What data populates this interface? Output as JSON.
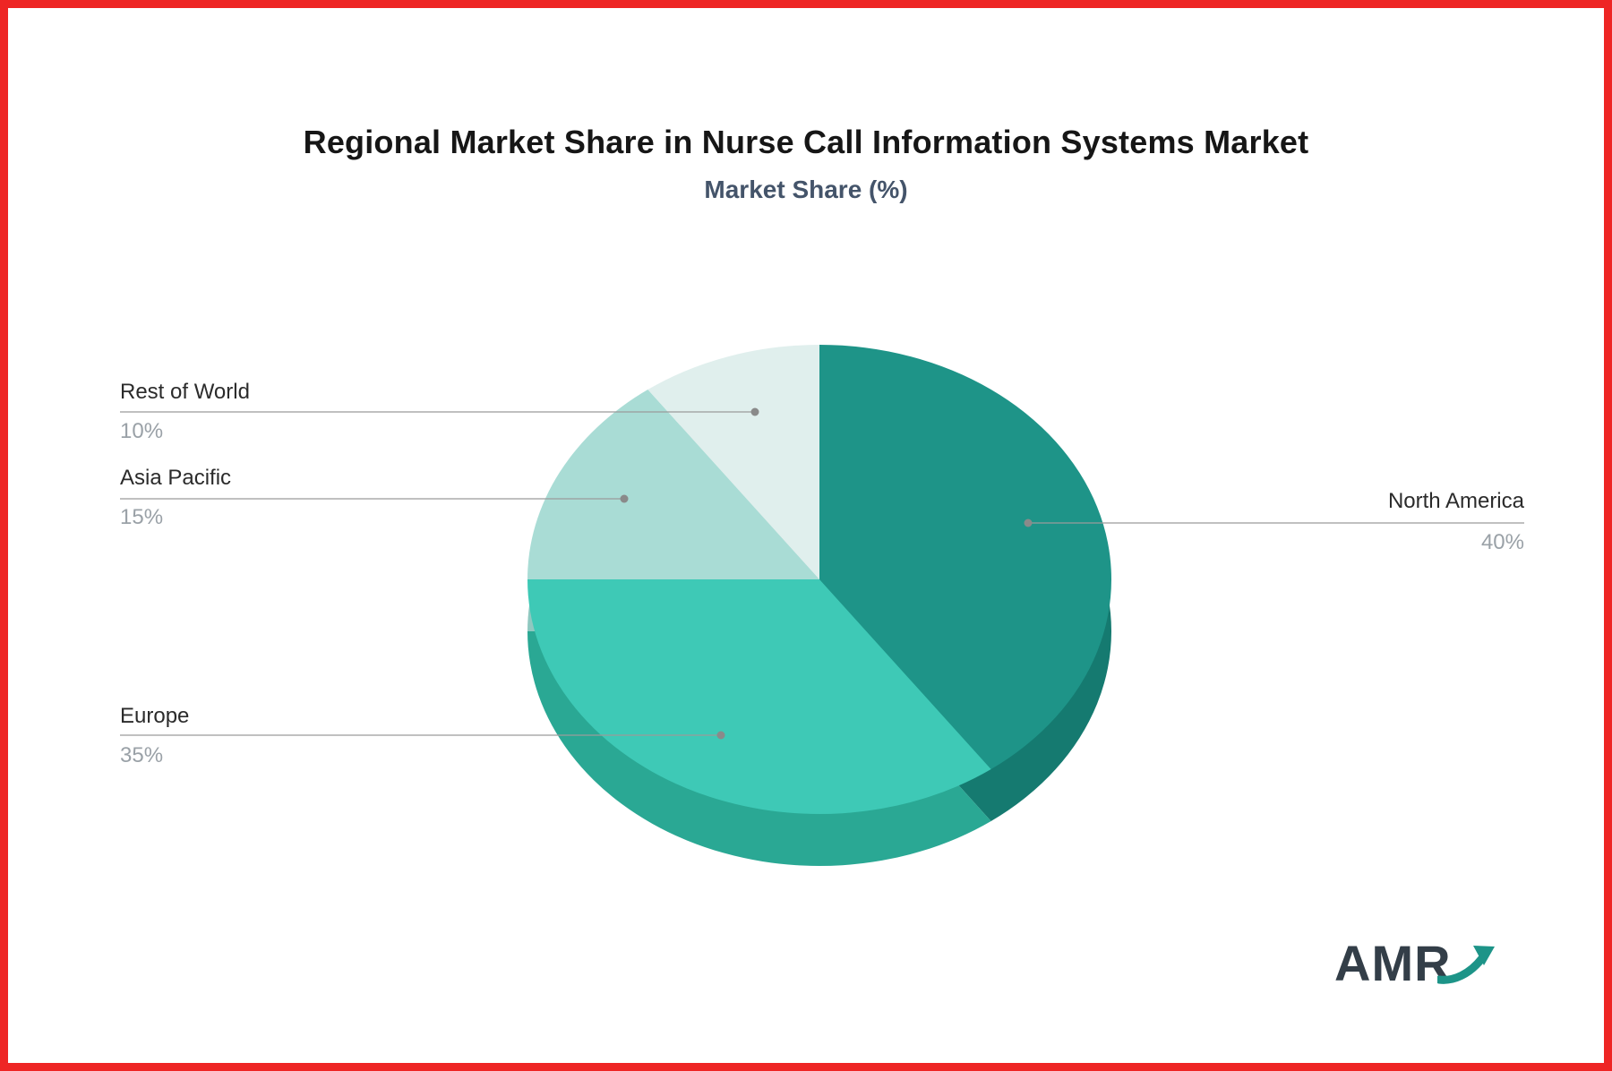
{
  "title": "Regional Market Share in Nurse Call Information Systems Market",
  "subtitle": "Market Share (%)",
  "logo_text": "AMR",
  "colors": {
    "frame_border": "#ee2524",
    "title_text": "#161616",
    "subtitle_text": "#44546a",
    "label_text": "#2b2b2b",
    "value_text": "#9aa1a7",
    "leader_line": "#9a9a9a",
    "leader_dot": "#8a8a8a",
    "logo_text": "#333e48",
    "logo_arrow": "#1d9488"
  },
  "chart_data": {
    "type": "pie",
    "title": "Regional Market Share in Nurse Call Information Systems Market",
    "subtitle": "Market Share (%)",
    "unit": "%",
    "start_angle": "top",
    "direction": "clockwise",
    "effect": "3d-depth",
    "legend_position": "none",
    "slices": [
      {
        "label": "North America",
        "value": 40,
        "value_text": "40%",
        "color": "#1e9488",
        "depth_color": "#157a70",
        "label_side": "right"
      },
      {
        "label": "Europe",
        "value": 35,
        "value_text": "35%",
        "color": "#3ec9b6",
        "depth_color": "#2aa894",
        "label_side": "left"
      },
      {
        "label": "Asia Pacific",
        "value": 15,
        "value_text": "15%",
        "color": "#a9dcd5",
        "depth_color": "#8fc8c0",
        "label_side": "left"
      },
      {
        "label": "Rest of World",
        "value": 10,
        "value_text": "10%",
        "color": "#e0efed",
        "depth_color": "#c9e0dd",
        "label_side": "left"
      }
    ]
  }
}
